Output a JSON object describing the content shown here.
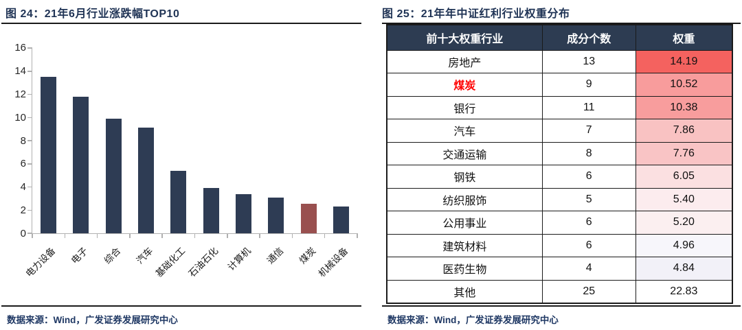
{
  "colors": {
    "title": "#1f3355",
    "rule": "#1a1a1a",
    "axis": "#b0b0b0",
    "bar": "#2e3c54",
    "bar_highlight": "#99504f",
    "table_header_bg": "#2d3c52",
    "table_header_text": "#ffffff",
    "table_border": "#1a1a1a",
    "highlight_text": "#ff0000",
    "source_text": "#1f3864"
  },
  "left_panel": {
    "title": "图 24：21年6月行业涨跌幅TOP10",
    "source": "数据来源：Wind，广发证券发展研究中心"
  },
  "right_panel": {
    "title": "图 25：21年年中证红利行业权重分布",
    "source": "数据来源：Wind，广发证券发展研究中心"
  },
  "chart_data": [
    {
      "type": "bar",
      "title": "21年6月行业涨跌幅TOP10",
      "categories": [
        "电力设备",
        "电子",
        "综合",
        "汽车",
        "基础化工",
        "石油石化",
        "计算机",
        "通信",
        "煤炭",
        "机械设备"
      ],
      "values": [
        13.5,
        11.8,
        9.9,
        9.1,
        5.4,
        3.9,
        3.35,
        3.1,
        2.55,
        2.3
      ],
      "xlabel": "",
      "ylabel": "",
      "ylim": [
        0,
        16
      ],
      "ytick_step": 2,
      "yticks": [
        0,
        2,
        4,
        6,
        8,
        10,
        12,
        14,
        16
      ],
      "grid": false,
      "legend": false,
      "highlight_index": 8,
      "highlight_category": "煤炭"
    },
    {
      "type": "table",
      "title": "21年年中证红利行业权重分布",
      "headers": [
        "前十大权重行业",
        "成分个数",
        "权重"
      ],
      "rows": [
        {
          "industry": "房地产",
          "count": "13",
          "weight": "14.19",
          "weight_bg": "#f4625f",
          "highlight": false
        },
        {
          "industry": "煤炭",
          "count": "9",
          "weight": "10.52",
          "weight_bg": "#f89c9c",
          "highlight": true
        },
        {
          "industry": "银行",
          "count": "11",
          "weight": "10.38",
          "weight_bg": "#f89d9d",
          "highlight": false
        },
        {
          "industry": "汽车",
          "count": "7",
          "weight": "7.86",
          "weight_bg": "#f9c2c2",
          "highlight": false
        },
        {
          "industry": "交通运输",
          "count": "8",
          "weight": "7.76",
          "weight_bg": "#f9c4c5",
          "highlight": false
        },
        {
          "industry": "钢铁",
          "count": "6",
          "weight": "6.05",
          "weight_bg": "#fbe0e1",
          "highlight": false
        },
        {
          "industry": "纺织服饰",
          "count": "5",
          "weight": "5.40",
          "weight_bg": "#fcecee",
          "highlight": false
        },
        {
          "industry": "公用事业",
          "count": "6",
          "weight": "5.20",
          "weight_bg": "#fbeff0",
          "highlight": false
        },
        {
          "industry": "建筑材料",
          "count": "6",
          "weight": "4.96",
          "weight_bg": "#f7f6fb",
          "highlight": false
        },
        {
          "industry": "医药生物",
          "count": "4",
          "weight": "4.84",
          "weight_bg": "#f2f1f8",
          "highlight": false
        },
        {
          "industry": "其他",
          "count": "25",
          "weight": "22.83",
          "weight_bg": "#ffffff",
          "highlight": false
        }
      ]
    }
  ]
}
